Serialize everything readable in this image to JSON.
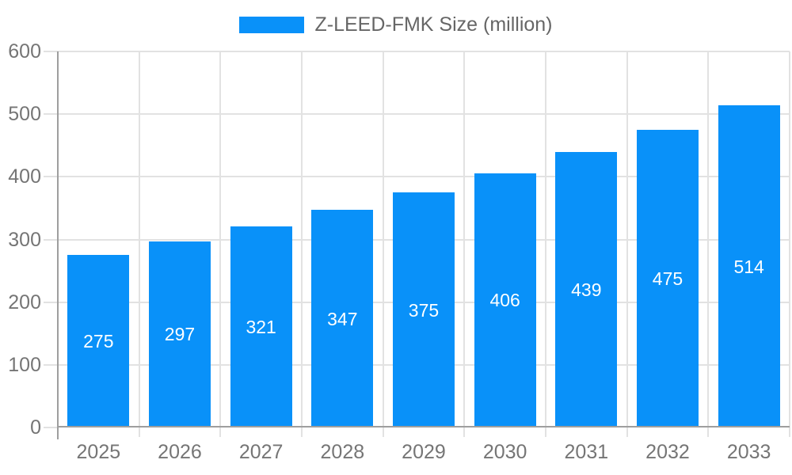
{
  "chart_data": {
    "type": "bar",
    "title": "",
    "xlabel": "",
    "ylabel": "",
    "categories": [
      "2025",
      "2026",
      "2027",
      "2028",
      "2029",
      "2030",
      "2031",
      "2032",
      "2033"
    ],
    "series": [
      {
        "name": "Z-LEED-FMK Size (million)",
        "values": [
          275,
          297,
          321,
          347,
          375,
          406,
          439,
          475,
          514
        ]
      }
    ],
    "bar_value_labels": [
      "275",
      "297",
      "321",
      "347",
      "375",
      "406",
      "439",
      "475",
      "514"
    ],
    "ylim": [
      0,
      600
    ],
    "yticks": [
      0,
      100,
      200,
      300,
      400,
      500,
      600
    ],
    "grid": true,
    "legend_position": "top-center",
    "colors": {
      "bar": "#0991F9",
      "gridline": "#E2E2E2",
      "axis": "#9E9E9E",
      "tick_text": "#757575",
      "legend_text": "#666666",
      "value_label_text": "#FFFFFF",
      "background": "#FFFFFF"
    }
  }
}
